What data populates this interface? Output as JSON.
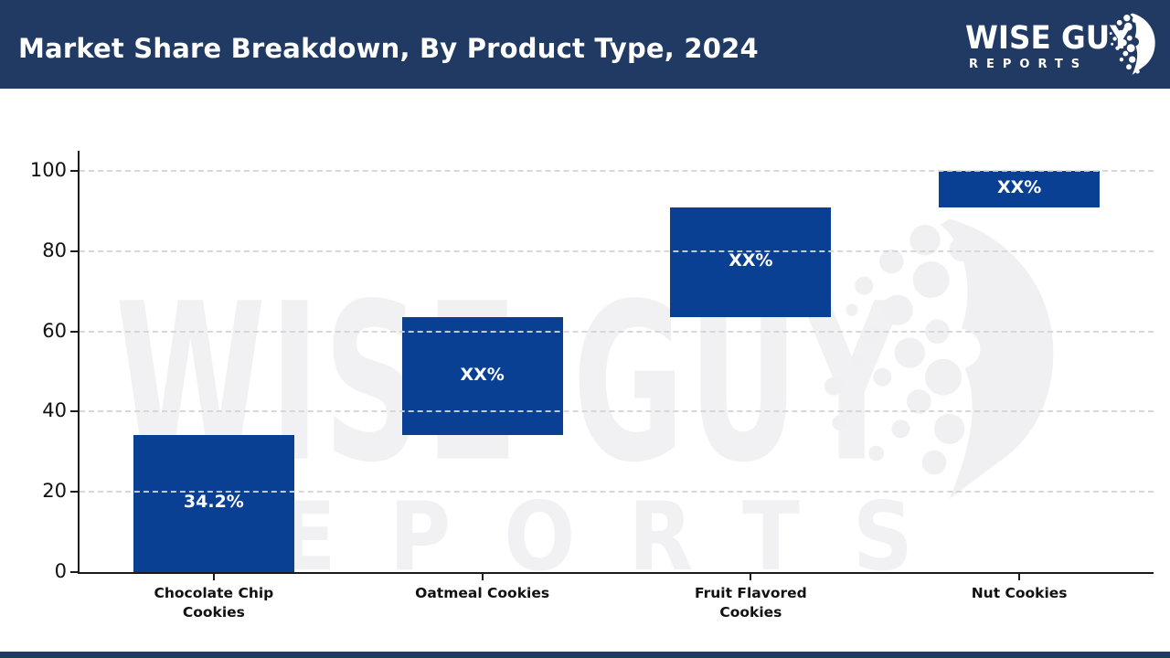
{
  "header": {
    "title": "Market Share Breakdown, By Product Type, 2024",
    "logo": {
      "line1": "WISE GUY",
      "line2": "REPORTS"
    }
  },
  "watermark": {
    "line1": "WISE GUY",
    "line2": "REPORTS"
  },
  "chart_data": {
    "type": "bar",
    "subtype": "floating-waterfall",
    "title": "Market Share Breakdown, By Product Type, 2024",
    "categories": [
      "Chocolate Chip Cookies",
      "Oatmeal Cookies",
      "Fruit Flavored Cookies",
      "Nut Cookies"
    ],
    "category_lines": [
      [
        "Chocolate Chip",
        "Cookies"
      ],
      [
        "Oatmeal Cookies"
      ],
      [
        "Fruit Flavored",
        "Cookies"
      ],
      [
        "Nut Cookies"
      ]
    ],
    "segments": [
      {
        "category": "Chocolate Chip Cookies",
        "start": 0,
        "end": 34.2,
        "label": "34.2%"
      },
      {
        "category": "Oatmeal Cookies",
        "start": 34.2,
        "end": 63.5,
        "label": "XX%"
      },
      {
        "category": "Fruit Flavored Cookies",
        "start": 63.5,
        "end": 90.8,
        "label": "XX%"
      },
      {
        "category": "Nut Cookies",
        "start": 91.0,
        "end": 100.0,
        "label": "XX%"
      }
    ],
    "yticks": [
      0,
      20,
      40,
      60,
      80,
      100
    ],
    "ylim": [
      0,
      100
    ],
    "xlabel": "",
    "ylabel": "",
    "grid": "horizontal-dashed",
    "legend": "none"
  },
  "colors": {
    "header_bg": "#203a63",
    "footer_bg": "#203a63",
    "bar": "#0a4094",
    "bar_label": "#ffffff",
    "grid": "#d5d5d5",
    "axis": "#1a1a1a",
    "watermark": "#f1f1f4",
    "logo_text": "#ffffff"
  }
}
